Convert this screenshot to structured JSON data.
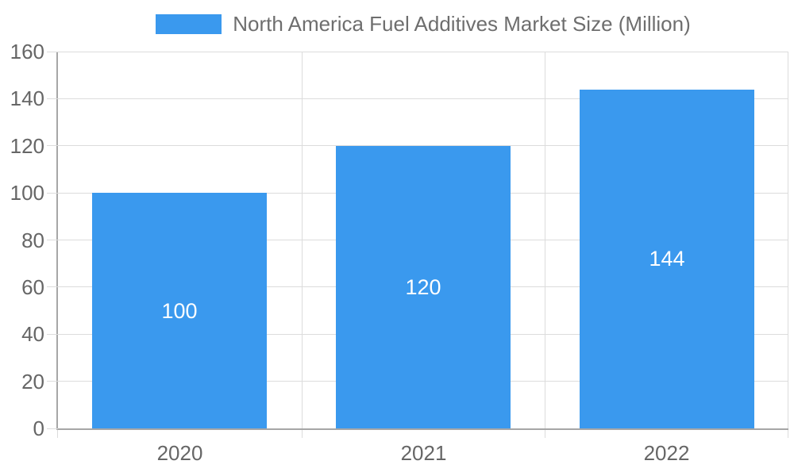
{
  "chart_data": {
    "type": "bar",
    "title": "North America Fuel Additives Market Size (Million)",
    "legend": [
      "North America Fuel Additives Market Size (Million)"
    ],
    "legend_position": "top",
    "categories": [
      "2020",
      "2021",
      "2022"
    ],
    "values": [
      100,
      120,
      144
    ],
    "bar_value_labels": [
      "100",
      "120",
      "144"
    ],
    "xlabel": "",
    "ylabel": "",
    "ylim": [
      0,
      160
    ],
    "yticks": [
      0,
      20,
      40,
      60,
      80,
      100,
      120,
      140,
      160
    ],
    "grid": true,
    "colors": {
      "bar": "#3A99EE",
      "axis": "#a6a6a6",
      "grid": "#dcdcdc",
      "tick_text": "#666666",
      "legend_text": "#6e6e6e",
      "bar_label_text": "#ffffff",
      "background": "#ffffff"
    }
  }
}
